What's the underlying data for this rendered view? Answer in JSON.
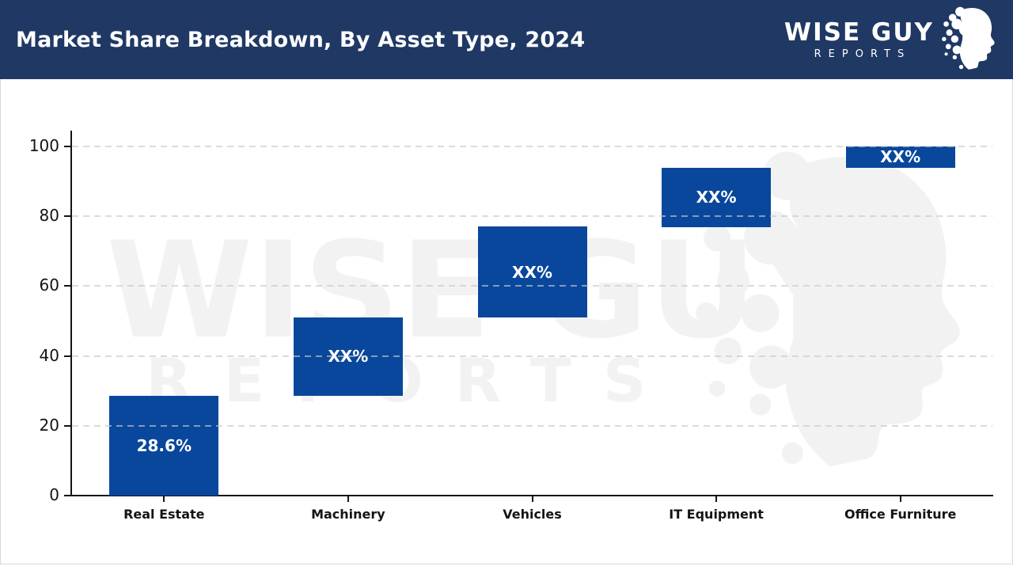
{
  "header": {
    "title": "Market Share Breakdown, By Asset Type, 2024",
    "logo": {
      "line1": "WISE GUY",
      "line2": "REPORTS"
    }
  },
  "watermark": {
    "line1": "WISE GUY",
    "line2": "REPORTS"
  },
  "colors": {
    "header_bg": "#1f3864",
    "bar": "#09479c",
    "axis": "#141414",
    "gridline": "#c8c8c8",
    "watermark": "#f2f2f2",
    "value_label_text": "#ffffff"
  },
  "chart_data": {
    "type": "bar",
    "subtype": "waterfall",
    "title": "Market Share Breakdown, By Asset Type, 2024",
    "xlabel": "",
    "ylabel": "",
    "ylim": [
      0,
      100
    ],
    "yticks": [
      0,
      20,
      40,
      60,
      80,
      100
    ],
    "grid": "horizontal-dashed-over-bars",
    "legend": "none",
    "categories": [
      "Real Estate",
      "Machinery",
      "Vehicles",
      "IT Equipment",
      "Office Furniture"
    ],
    "segments": [
      {
        "category": "Real Estate",
        "start": 0,
        "end": 28.6,
        "label": "28.6%"
      },
      {
        "category": "Machinery",
        "start": 28.6,
        "end": 51,
        "label": "XX%"
      },
      {
        "category": "Vehicles",
        "start": 51,
        "end": 77,
        "label": "XX%"
      },
      {
        "category": "IT Equipment",
        "start": 77,
        "end": 94,
        "label": "XX%"
      },
      {
        "category": "Office Furniture",
        "start": 94,
        "end": 100,
        "label": "XX%"
      }
    ]
  }
}
